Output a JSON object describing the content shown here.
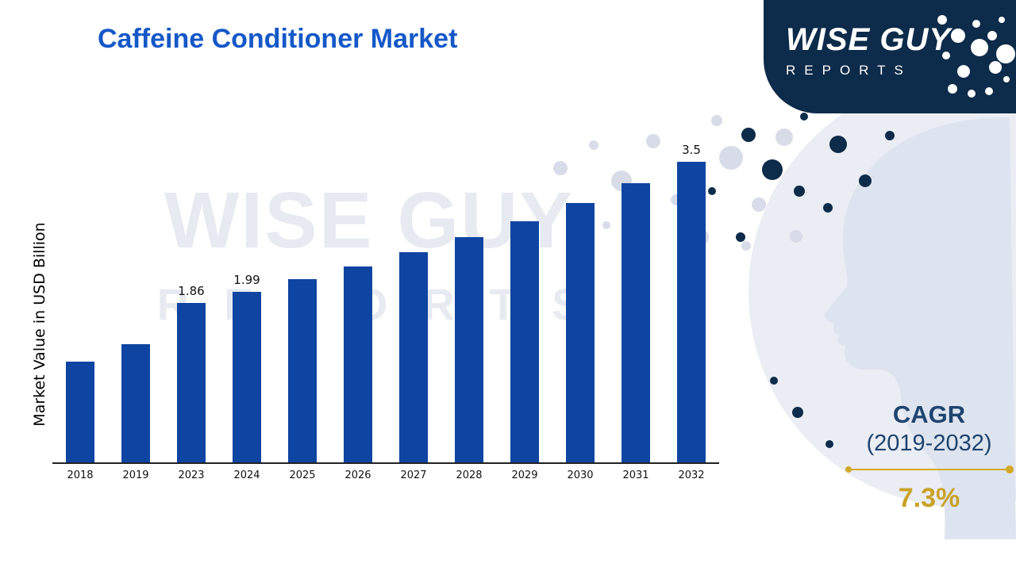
{
  "header": {
    "title": "Caffeine Conditioner Market"
  },
  "watermark": {
    "line1": "WISE GUY",
    "line2": "REPORTS"
  },
  "logo": {
    "line1": "WISE GUY",
    "line2": "REPORTS"
  },
  "cagr": {
    "label": "CAGR",
    "range": "(2019-2032)",
    "value": "7.3%"
  },
  "colors": {
    "bar": "#0f45a2",
    "title_blue": "#1558c8",
    "navy": "#0d2b4a",
    "gold": "#c9a227"
  },
  "chart_data": {
    "type": "bar",
    "title": "Caffeine Conditioner Market",
    "xlabel": "",
    "ylabel": "Market Value in USD Billion",
    "categories": [
      "2018",
      "2019",
      "2023",
      "2024",
      "2025",
      "2026",
      "2027",
      "2028",
      "2029",
      "2030",
      "2031",
      "2032"
    ],
    "values": [
      1.17,
      1.38,
      1.86,
      1.99,
      2.13,
      2.28,
      2.45,
      2.62,
      2.81,
      3.02,
      3.25,
      3.5
    ],
    "labels": [
      "",
      "",
      "1.86",
      "1.99",
      "",
      "",
      "",
      "",
      "",
      "",
      "",
      "3.5"
    ],
    "ylim": [
      0,
      4.0
    ],
    "grid": false,
    "legend": false,
    "bar_color": "#0f45a2"
  }
}
